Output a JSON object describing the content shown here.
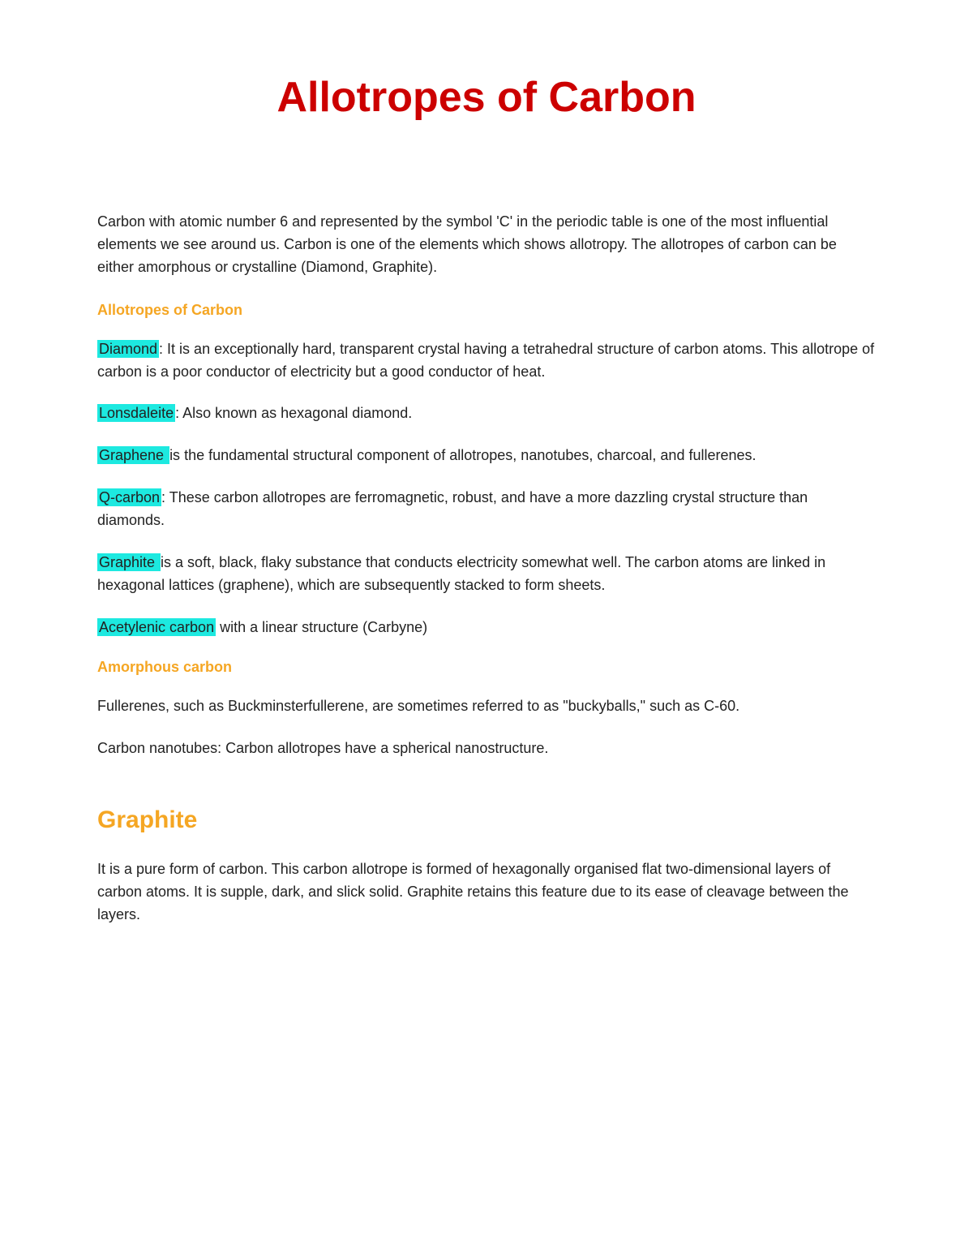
{
  "colors": {
    "title": "#cc0000",
    "subhead": "#f5a623",
    "section": "#f5a623",
    "highlight_bg": "#1de9e0",
    "text": "#222222"
  },
  "title": "Allotropes of Carbon",
  "intro": "Carbon with atomic number 6 and represented by the symbol 'C' in the periodic table is one of the most influential elements we see around us. Carbon is one of the elements which shows allotropy. The allotropes of carbon can be either amorphous or crystalline (Diamond, Graphite).",
  "subhead1": "Allotropes of Carbon",
  "items": [
    {
      "label": "Diamond",
      "sep": ": ",
      "text": "It is an exceptionally hard, transparent crystal having a tetrahedral structure of carbon atoms. This allotrope of carbon is a poor conductor of electricity but a good conductor of heat."
    },
    {
      "label": "Lonsdaleite",
      "sep": ": ",
      "text": "Also known as hexagonal diamond."
    },
    {
      "label": "Graphene ",
      "sep": "",
      "text": "is the fundamental structural component of allotropes, nanotubes, charcoal, and fullerenes."
    },
    {
      "label": "Q-carbon",
      "sep": ": ",
      "text": "These carbon allotropes are ferromagnetic, robust, and have a more dazzling crystal structure than diamonds."
    },
    {
      "label": "Graphite ",
      "sep": "",
      "text": "is a soft, black, flaky substance that conducts electricity somewhat well. The carbon atoms are linked in hexagonal lattices (graphene), which are subsequently stacked to form sheets."
    },
    {
      "label": "Acetylenic carbon",
      "sep": " ",
      "text": "with a linear structure (Carbyne)"
    }
  ],
  "subhead2": "Amorphous carbon",
  "amorphous": [
    "Fullerenes, such as Buckminsterfullerene, are sometimes referred to as \"buckyballs,\" such as C-60.",
    "Carbon nanotubes: Carbon allotropes have a spherical nanostructure."
  ],
  "section2_title": "Graphite",
  "section2_body": "It is a pure form of carbon. This carbon allotrope is formed of hexagonally organised flat two-dimensional layers of carbon atoms. It is supple, dark, and slick solid. Graphite retains this feature due to its ease of cleavage between the layers."
}
